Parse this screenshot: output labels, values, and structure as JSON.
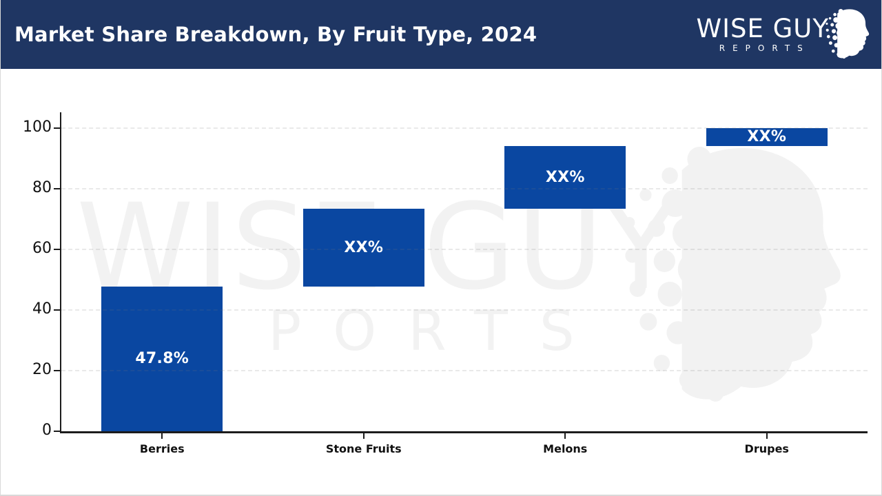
{
  "header": {
    "title": "Market Share Breakdown, By Fruit Type, 2024",
    "logo": {
      "line1": "WISE GUY",
      "line2": "REPORTS"
    }
  },
  "watermark": {
    "line1": "WISE GUY",
    "line2": "PORTS"
  },
  "chart_data": {
    "type": "bar",
    "subtype": "waterfall",
    "title": "Market Share Breakdown, By Fruit Type, 2024",
    "categories": [
      "Berries",
      "Stone Fruits",
      "Melons",
      "Drupes"
    ],
    "segments": [
      {
        "category": "Berries",
        "start": 0,
        "end": 47.8,
        "label": "47.8%"
      },
      {
        "category": "Stone Fruits",
        "start": 47.8,
        "end": 73.5,
        "label": "XX%"
      },
      {
        "category": "Melons",
        "start": 73.5,
        "end": 94.1,
        "label": "XX%"
      },
      {
        "category": "Drupes",
        "start": 94.1,
        "end": 100.0,
        "label": "XX%"
      }
    ],
    "yticks": [
      0,
      20,
      40,
      60,
      80,
      100
    ],
    "ylim": [
      0,
      105
    ],
    "xlabel": "",
    "ylabel": "",
    "grid": "horizontal-dashed",
    "legend": "none",
    "colors": {
      "bar": "#0a47a1",
      "bar_label": "#ffffff",
      "header_bg": "#1f3663",
      "axis": "#1c1c1c",
      "grid": "#e3e3e3",
      "watermark": "#f2f2f2"
    }
  }
}
